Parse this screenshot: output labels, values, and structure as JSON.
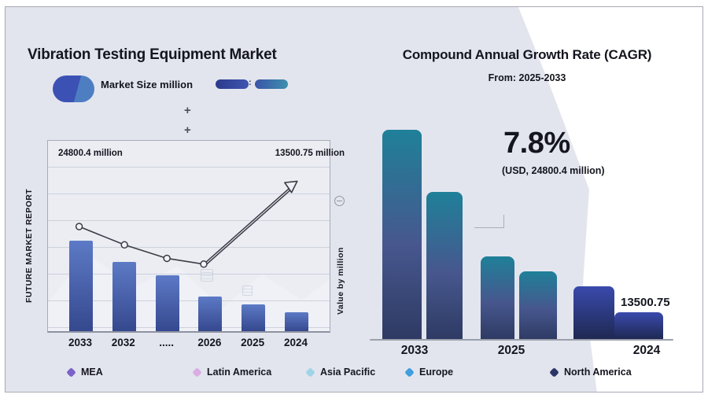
{
  "page": {
    "left_title": "Vibration Testing Equipment Market",
    "left_legend_label": "Market Size million",
    "ratio_colon": ":",
    "plus_marks": [
      "+",
      "+"
    ],
    "annotation_start": "24800.4 million",
    "annotation_end": "13500.75 million",
    "watermark_vertical": "FUTURE MARKET REPORT",
    "left_axis_label": "Value by million",
    "right_title": "Compound Annual Growth Rate (CAGR)",
    "right_subtitle": "From: 2025-2033",
    "cagr_value": "7.8%",
    "cagr_basis": "(USD, 24800.4 million)",
    "callout_value": "13500.75"
  },
  "icons": {
    "market_size_icon": "two-tone pill cylinder",
    "ratio_pills_icon": "two gradient pills separated by colon",
    "zoom_out_icon": "minus in circle",
    "plus_marks": "plus glyphs",
    "trend_arrow_icon": "hand-drawn double-line arrow rising right"
  },
  "legend": {
    "items": [
      {
        "label": "MEA",
        "color": "#7a62c9"
      },
      {
        "label": "Latin America",
        "color": "#d9aee3"
      },
      {
        "label": "Asia Pacific",
        "color": "#9fd4e8"
      },
      {
        "label": "Europe",
        "color": "#3f9ede"
      },
      {
        "label": "North America",
        "color": "#2b3566"
      }
    ]
  },
  "colors": {
    "panel_bg": "#e3e5ee",
    "text": "#14151e",
    "grid": "#cdd1dc",
    "border": "#a6abb8",
    "axis": "#9aa0ab",
    "left_bar_top": "#5d7ac6",
    "left_bar_bottom": "#35488e",
    "teal_top": "#1f8099",
    "teal_mid": "#47578e",
    "teal_bottom": "#2e3a63",
    "navy_top": "#3a4aad",
    "navy_bottom": "#1e2850",
    "line": "#3a3c46",
    "pill_left": "#3b52b4",
    "pill_right": "#4e7ec2",
    "minipill1_a": "#2b3a8c",
    "minipill1_b": "#3d55b0",
    "minipill2_a": "#3c55a8",
    "minipill2_b": "#3d8fae"
  },
  "chart_data": [
    {
      "type": "bar",
      "title": "Vibration Testing Equipment Market — Market Size million",
      "ylabel": "Value by million",
      "categories": [
        "2033",
        "2032",
        ".....",
        "2026",
        "2025",
        "2024"
      ],
      "bar_heights_pct_of_plot": [
        47,
        36,
        29,
        18,
        14,
        10
      ],
      "annotations": {
        "top_left_value": "24800.4 million",
        "top_right_value": "13500.75 million",
        "note": "only the 2033 (24800.4M) and 2024 (13500.75M) values are labeled; bar heights estimated from pixels"
      },
      "trend_line": {
        "type": "line",
        "marker": "open-circle",
        "points_pct": [
          [
            11,
            44.5
          ],
          [
            27,
            54
          ],
          [
            42,
            61
          ],
          [
            55,
            64
          ]
        ],
        "arrow_to_pct": [
          88,
          21
        ],
        "meaning": "declines toward 2026 then arrow rises sharply toward 13500.75 million label"
      },
      "grid": true,
      "legend_position": "above-chart"
    },
    {
      "type": "bar",
      "title": "Compound Annual Growth Rate (CAGR)",
      "subtitle": "From: 2025-2033",
      "cagr_percent": 7.8,
      "basis": "(USD, 24800.4 million)",
      "categories": [
        "2033",
        "2025",
        "2024"
      ],
      "series": [
        {
          "name": "bar-a",
          "heights_pct_of_plot": [
            98,
            39,
            25
          ]
        },
        {
          "name": "bar-b",
          "heights_pct_of_plot": [
            69,
            32,
            13
          ]
        }
      ],
      "annotation": {
        "text": "13500.75",
        "category": "2024"
      },
      "grid": false
    }
  ]
}
